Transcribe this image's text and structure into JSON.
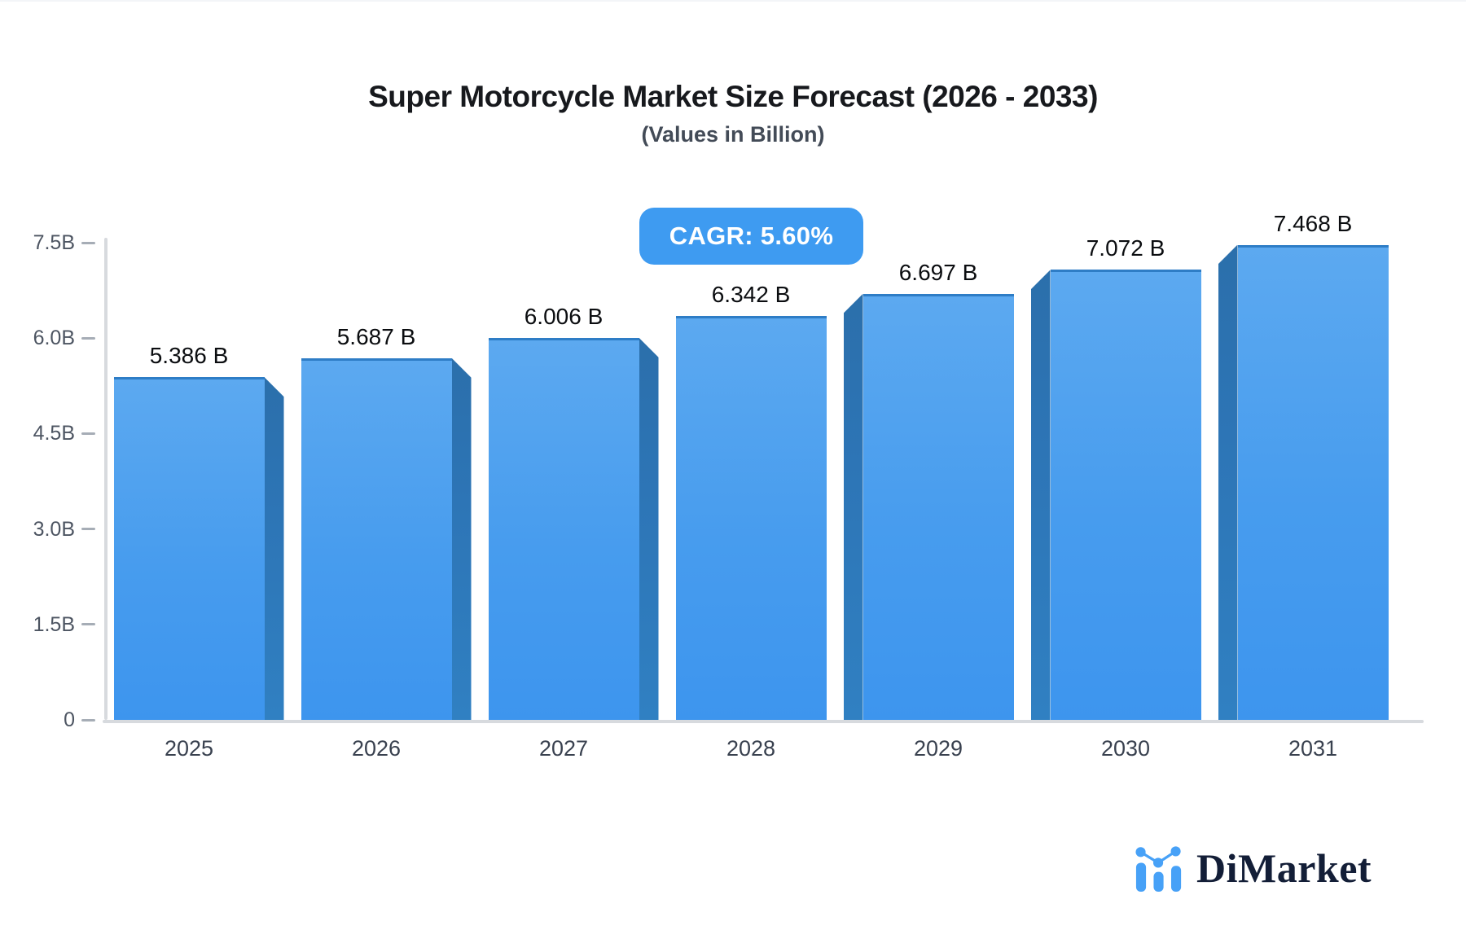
{
  "title": "Super Motorcycle Market Size Forecast (2026 - 2033)",
  "subtitle": "(Values in Billion)",
  "cagr_badge": "CAGR: 5.60%",
  "logo": {
    "text": "DiMarket",
    "icon": "bar-line-chart-icon"
  },
  "colors": {
    "bar_face_top": "#5ca9f0",
    "bar_face_bottom": "#3d95ee",
    "bar_side_face": "#2d75b6",
    "bar_top_edge": "#2e7dc6",
    "badge_bg": "#3e9bf1",
    "badge_text": "#ffffff",
    "axis_line": "#d7dade",
    "tick_mark": "#a6adb6",
    "ytick_text": "#4d5562",
    "xtick_text": "#39414f",
    "value_text": "#0b0d10",
    "title_text": "#17191d",
    "subtitle_text": "#434b57",
    "logo_blue": "#47a1f7",
    "logo_text": "#131e37"
  },
  "chart_data": {
    "type": "bar",
    "categories": [
      "2025",
      "2026",
      "2027",
      "2028",
      "2029",
      "2030",
      "2031"
    ],
    "values": [
      5.386,
      5.687,
      6.006,
      6.342,
      6.697,
      7.072,
      7.468
    ],
    "value_labels": [
      "5.386 B",
      "5.687 B",
      "6.006 B",
      "6.342 B",
      "6.697 B",
      "7.072 B",
      "7.468 B"
    ],
    "title": "Super Motorcycle Market Size Forecast (2026 - 2033)",
    "subtitle": "(Values in Billion)",
    "xlabel": "",
    "ylabel": "",
    "ylim": [
      0,
      7.5
    ],
    "yticks": [
      0,
      1.5,
      3.0,
      4.5,
      6.0,
      7.5
    ],
    "ytick_labels": [
      "0",
      "1.5B",
      "3.0B",
      "4.5B",
      "6.0B",
      "7.5B"
    ],
    "grid": false,
    "legend": false,
    "annotation": "CAGR: 5.60%",
    "style": "3d-bars, side face toward chart center, flat center bar"
  }
}
